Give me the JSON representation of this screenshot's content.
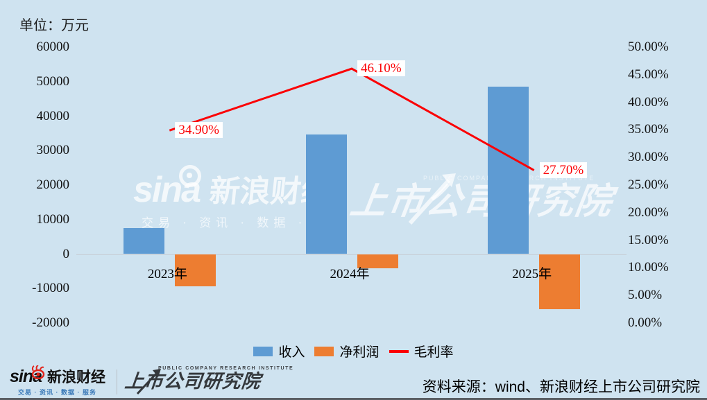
{
  "chart_data": {
    "type": "combo",
    "subtype": [
      "bar",
      "line"
    ],
    "unit_label": "单位：万元",
    "categories": [
      "2023年",
      "2024年",
      "2025年"
    ],
    "series": [
      {
        "key": "revenue",
        "name": "收入",
        "type": "bar",
        "axis": "left",
        "color": "#5E9BD3",
        "values": [
          7600,
          34700,
          48600
        ]
      },
      {
        "key": "net-profit",
        "name": "净利润",
        "type": "bar",
        "axis": "left",
        "color": "#ED7D31",
        "values": [
          -9400,
          -4200,
          -16000
        ]
      },
      {
        "key": "gross-margin",
        "name": "毛利率",
        "type": "line",
        "axis": "right",
        "color": "#FB0104",
        "values": [
          34.9,
          46.1,
          27.7
        ],
        "point_labels": [
          "34.90%",
          "46.10%",
          "27.70%"
        ]
      }
    ],
    "left_axis": {
      "min": -20000,
      "max": 60000,
      "tick_step": 10000,
      "tick_labels": [
        "60000",
        "50000",
        "40000",
        "30000",
        "20000",
        "10000",
        "0",
        "-10000",
        "-20000"
      ]
    },
    "right_axis": {
      "min": 0,
      "max": 50,
      "tick_step": 5,
      "tick_labels": [
        "50.00%",
        "45.00%",
        "40.00%",
        "35.00%",
        "30.00%",
        "25.00%",
        "20.00%",
        "15.00%",
        "10.00%",
        "5.00%",
        "0.00%"
      ]
    },
    "grid": "zero-line-only",
    "legend_position": "bottom-center",
    "background_color": "#CFE3F0"
  },
  "legend": {
    "items": [
      {
        "label": "收入",
        "color": "#5E9BD3",
        "type": "bar"
      },
      {
        "label": "净利润",
        "color": "#ED7D31",
        "type": "bar"
      },
      {
        "label": "毛利率",
        "color": "#FB0104",
        "type": "line"
      }
    ]
  },
  "watermarks": {
    "sina": {
      "brand": "sina",
      "name": "新浪财经",
      "tagline": "交易 · 资讯 · 数据 · 服务"
    },
    "institute": {
      "subtitle": "PUBLIC COMPANY RESEARCH INSTITUTE",
      "name": "上市公司研究院"
    }
  },
  "footer": {
    "sina_logo": {
      "brand": "sina",
      "name": "新浪财经",
      "tagline": "交易 · 资讯 · 数据 · 服务"
    },
    "institute_logo": {
      "subtitle": "PUBLIC COMPANY RESEARCH INSTITUTE",
      "name": "上市公司研究院"
    },
    "source": "资料来源：wind、新浪财经上市公司研究院"
  }
}
